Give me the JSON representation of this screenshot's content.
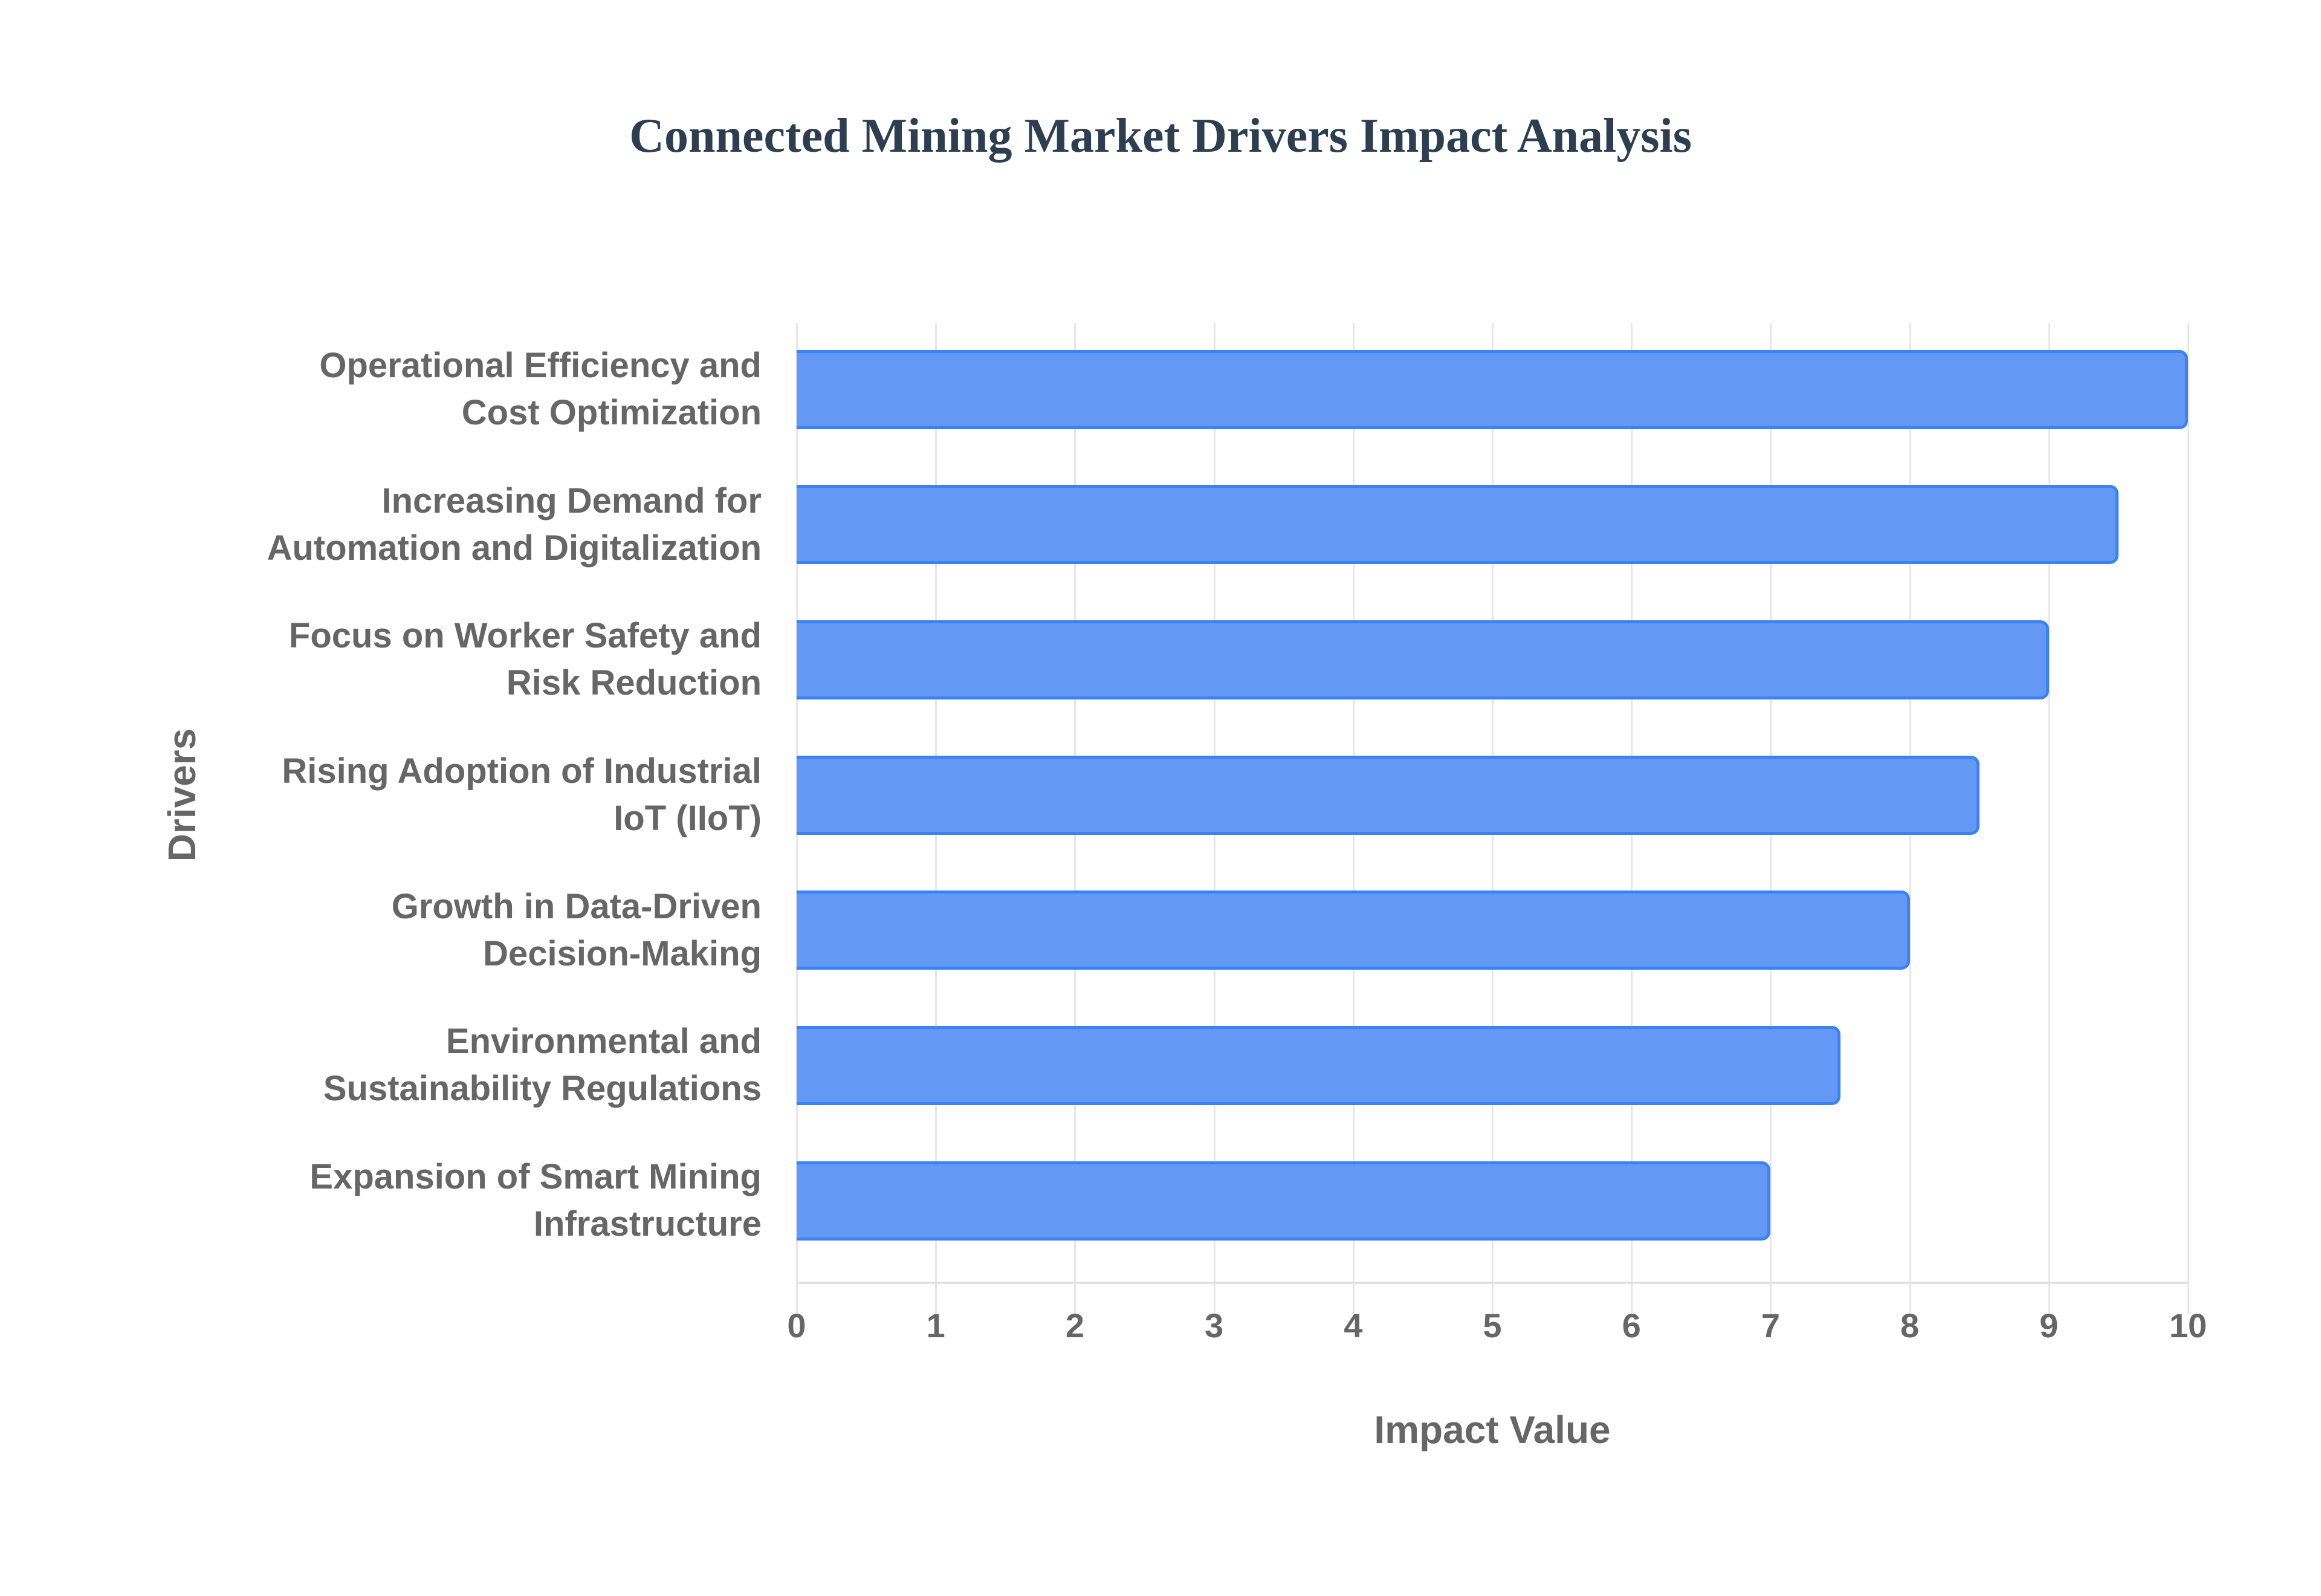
{
  "chart_data": {
    "type": "bar",
    "orientation": "horizontal",
    "title": "Connected Mining Market Drivers Impact Analysis",
    "xlabel": "Impact Value",
    "ylabel": "Drivers",
    "xlim": [
      0,
      10
    ],
    "xticks": [
      "0",
      "1",
      "2",
      "3",
      "4",
      "5",
      "6",
      "7",
      "8",
      "9",
      "10"
    ],
    "grid": true,
    "legend": null,
    "categories": [
      "Operational Efficiency and Cost Optimization",
      "Increasing Demand for Automation and Digitalization",
      "Focus on Worker Safety and Risk Reduction",
      "Rising Adoption of Industrial IoT (IIoT)",
      "Growth in Data-Driven Decision-Making",
      "Environmental and Sustainability Regulations",
      "Expansion of Smart Mining Infrastructure"
    ],
    "values": [
      10,
      9.5,
      9,
      8.5,
      8,
      7.5,
      7
    ],
    "colors": {
      "bar_fill": "#6399f5",
      "bar_border": "#3b82f6",
      "title": "#2c3e50",
      "axis_text": "#666666"
    }
  },
  "labels": {
    "title": "Connected Mining Market Drivers Impact Analysis",
    "xtitle": "Impact Value",
    "ytitle": "Drivers",
    "bars": [
      {
        "line1": "Operational Efficiency and",
        "line2": "Cost Optimization"
      },
      {
        "line1": "Increasing Demand for",
        "line2": "Automation and Digitalization"
      },
      {
        "line1": "Focus on Worker Safety and",
        "line2": "Risk Reduction"
      },
      {
        "line1": "Rising Adoption of Industrial",
        "line2": "IoT (IIoT)"
      },
      {
        "line1": "Growth in Data-Driven",
        "line2": "Decision-Making"
      },
      {
        "line1": "Environmental and",
        "line2": "Sustainability Regulations"
      },
      {
        "line1": "Expansion of Smart Mining",
        "line2": "Infrastructure"
      }
    ]
  }
}
